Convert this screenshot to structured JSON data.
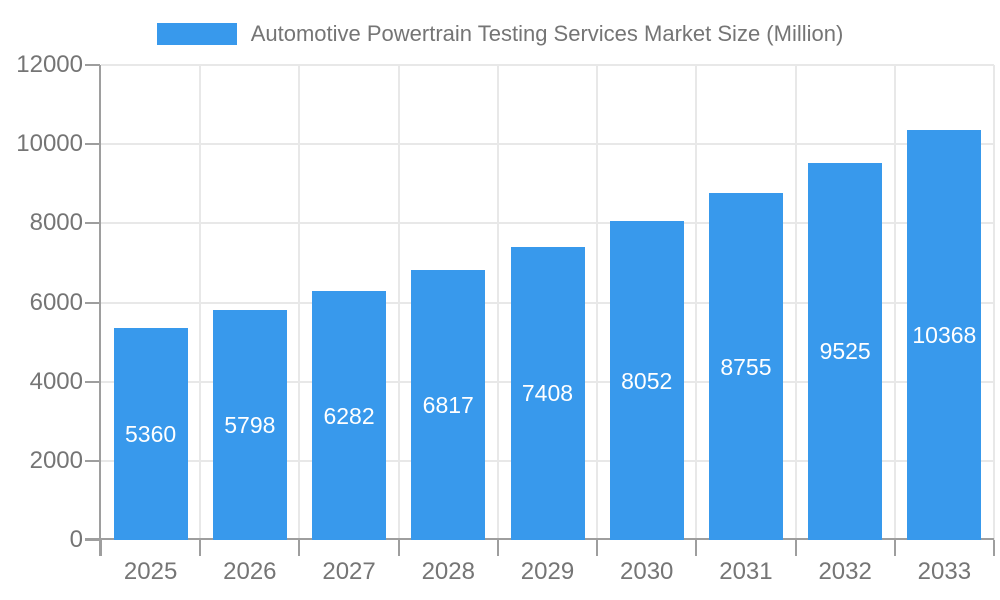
{
  "legend": {
    "label": "Automotive Powertrain Testing Services Market Size (Million)"
  },
  "colors": {
    "bar": "#3899EC",
    "axis_text": "#757575",
    "axis_line": "#9E9E9E",
    "grid_line": "#E8E8E8",
    "value_label": "#FFFFFF",
    "background": "#FFFFFF"
  },
  "chart_data": {
    "type": "bar",
    "title": "Automotive Powertrain Testing Services Market Size (Million)",
    "series_name": "Automotive Powertrain Testing Services Market Size (Million)",
    "categories": [
      "2025",
      "2026",
      "2027",
      "2028",
      "2029",
      "2030",
      "2031",
      "2032",
      "2033"
    ],
    "values": [
      5360,
      5798,
      6282,
      6817,
      7408,
      8052,
      8755,
      9525,
      10368
    ],
    "xlabel": "",
    "ylabel": "",
    "ylim": [
      0,
      12000
    ],
    "yticks": [
      0,
      2000,
      4000,
      6000,
      8000,
      10000,
      12000
    ],
    "ytick_interval": 2000,
    "grid": true,
    "legend_position": "top-center",
    "value_label_position": "inside-center"
  }
}
